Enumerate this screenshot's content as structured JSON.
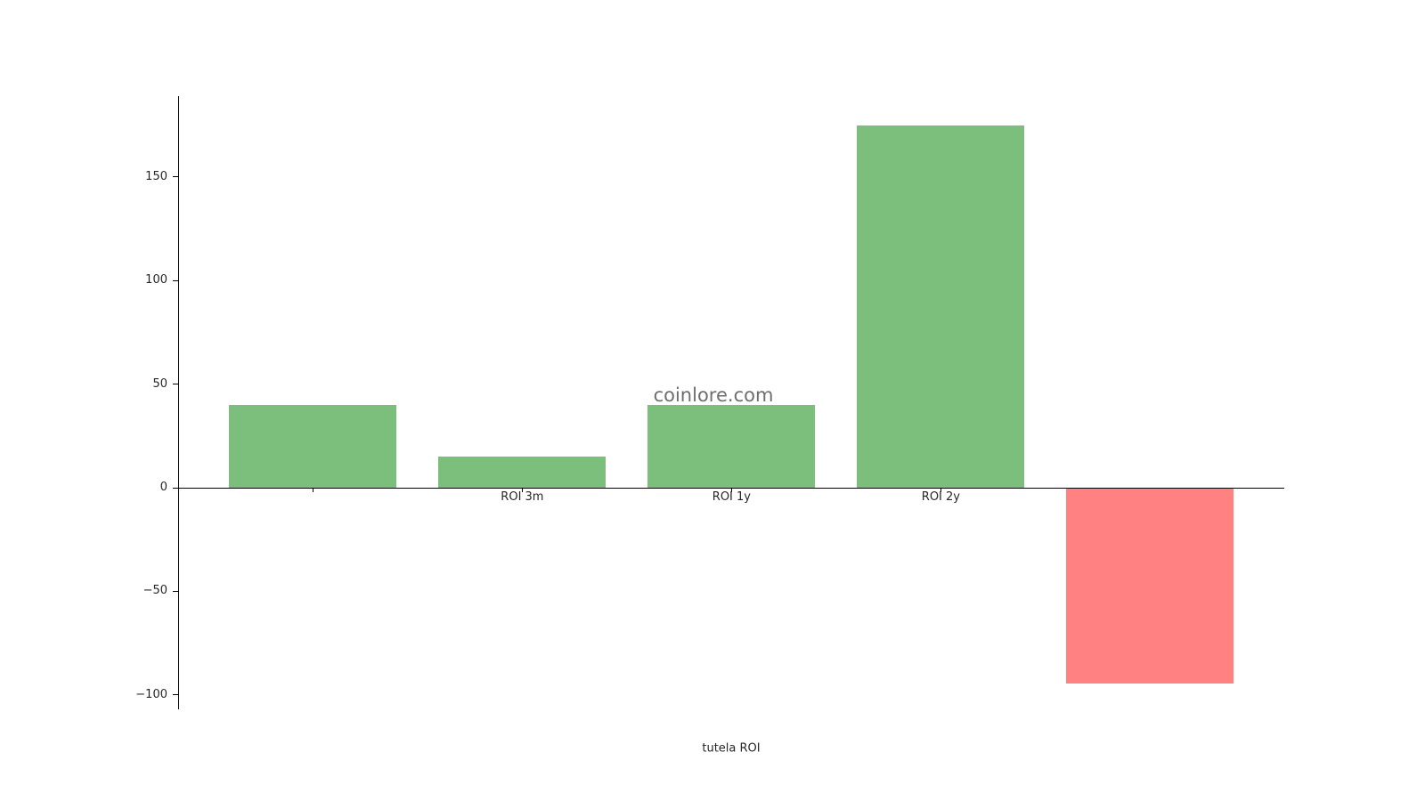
{
  "watermark": "coinlore.com",
  "colors": {
    "positive_bar": "#7CBE7C",
    "negative_bar": "#FF8181",
    "axis": "#000000",
    "tick_text": "#262626",
    "watermark_text": "#6E6E6E"
  },
  "chart_data": {
    "type": "bar",
    "categories": [
      "",
      "ROI 3m",
      "ROI 1y",
      "ROI 2y",
      ""
    ],
    "values": [
      40,
      15,
      40,
      175,
      -94
    ],
    "title": "",
    "xlabel": "tutela ROI",
    "ylabel": "",
    "ylim": [
      -107,
      189
    ],
    "yticks": [
      150,
      100,
      50,
      0,
      -50,
      -100
    ],
    "grid": false,
    "legend": "none",
    "bar_color_rule": "green for positive values, red for negative values"
  }
}
